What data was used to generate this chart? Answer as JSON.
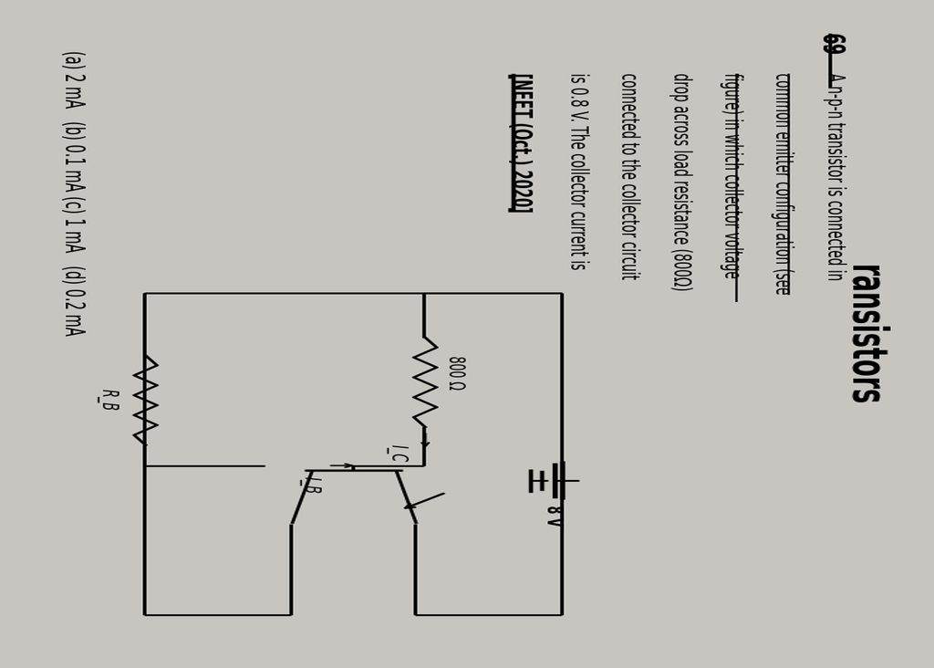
{
  "bg_color": "#c8c4c0",
  "text_color": "#000000",
  "title": "ransistors",
  "question_num": "69",
  "question_lines": [
    "A n-p-n transistor is connected in",
    "common emitter configuration (see",
    "figure) in which collector voltage",
    "drop across load resistance (800Ω)",
    "connected to the collector circuit",
    "is 0.8 V. The collector current is"
  ],
  "strikethrough_lines": [
    1,
    2
  ],
  "source": "[NEET (Oct.) 2020]",
  "options": "(a) 2 mA   (b) 0.1 mA (c) 1 mA   (d) 0.2 mA",
  "battery_label": "8 V",
  "r1_label": "800 Ω",
  "ic_label": "I_C",
  "rb_label": "R_B",
  "ib_label": "I_B"
}
